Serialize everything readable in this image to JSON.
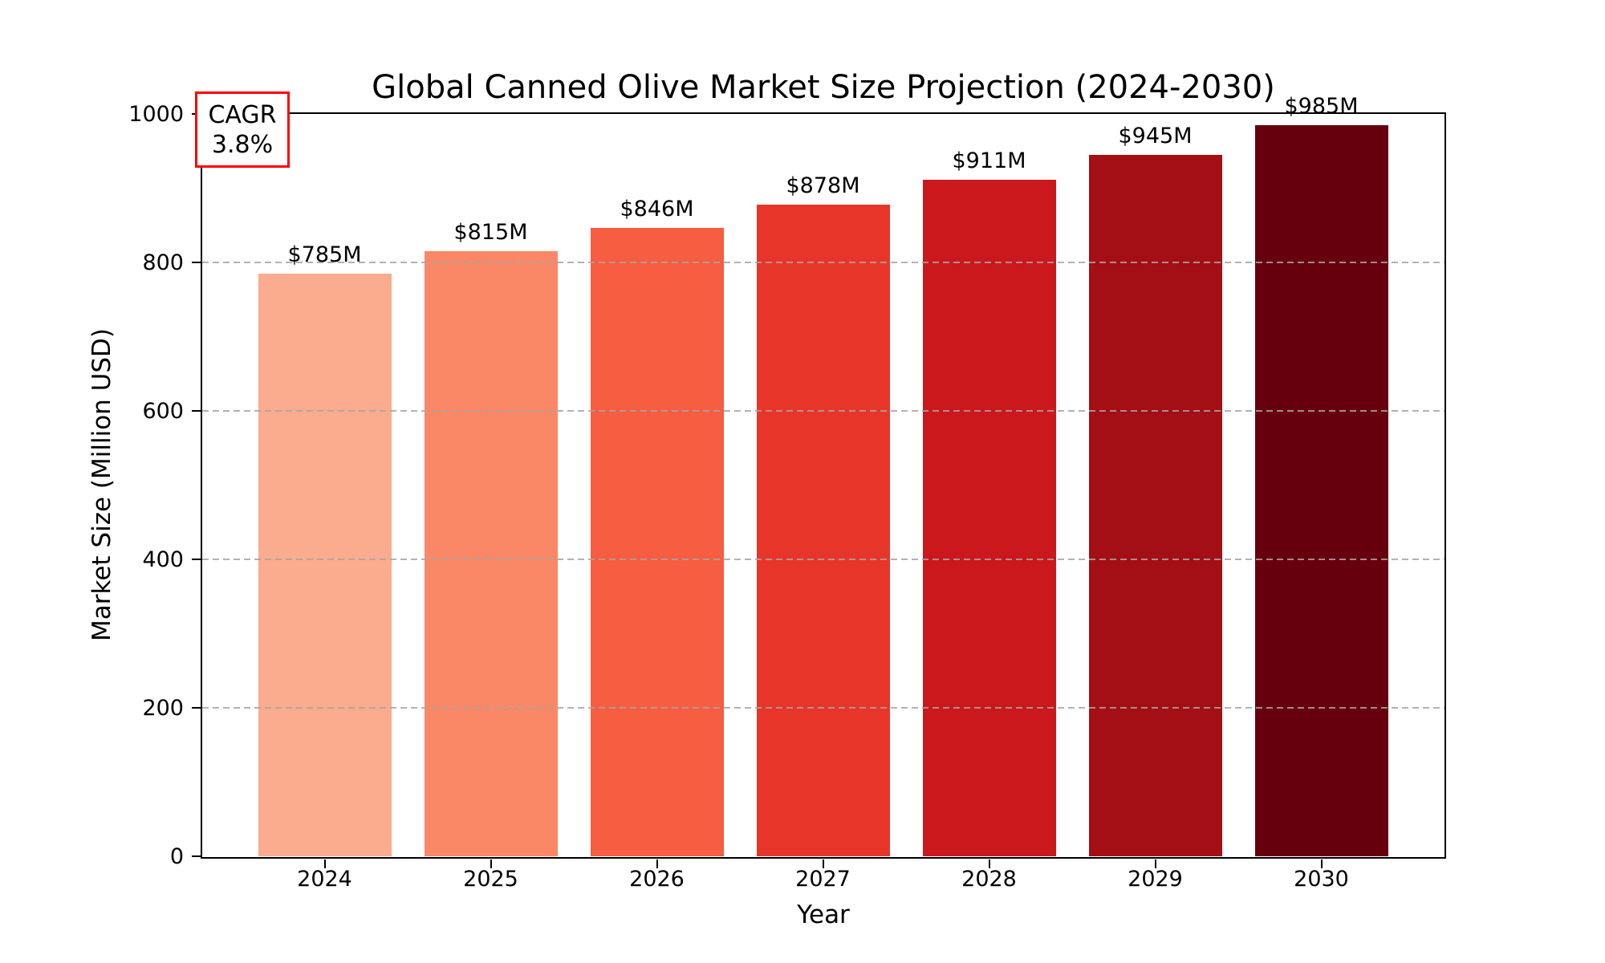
{
  "chart_data": {
    "type": "bar",
    "title": "Global Canned Olive Market Size Projection (2024-2030)",
    "xlabel": "Year",
    "ylabel": "Market Size (Million USD)",
    "categories": [
      "2024",
      "2025",
      "2026",
      "2027",
      "2028",
      "2029",
      "2030"
    ],
    "values": [
      785,
      815,
      846,
      878,
      911,
      945,
      985
    ],
    "value_labels": [
      "$785M",
      "$815M",
      "$846M",
      "$878M",
      "$911M",
      "$945M",
      "$985M"
    ],
    "bar_colors": [
      "#FBAC8E",
      "#FA8867",
      "#F65D41",
      "#E8352A",
      "#CA181D",
      "#A30F15",
      "#67000D"
    ],
    "ylim": [
      0,
      1000
    ],
    "yticks": [
      0,
      200,
      400,
      600,
      800,
      1000
    ],
    "grid": {
      "axis": "y",
      "style": "dashed",
      "color": "#A5A5A5",
      "above_bars": true
    },
    "legend_position": "none",
    "annotation": {
      "line1": "CAGR",
      "line2": "3.8%",
      "border_color": "#FF0000",
      "background": "#FFFFFF"
    }
  }
}
